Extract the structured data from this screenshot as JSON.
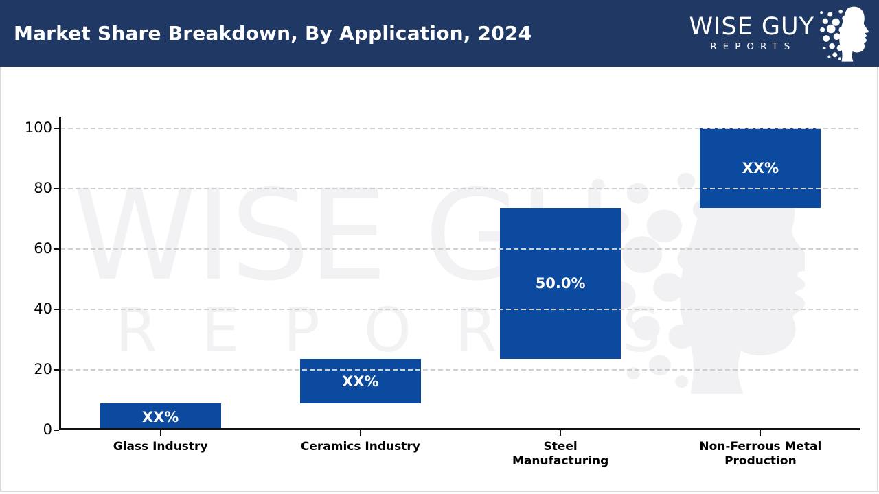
{
  "header": {
    "title": "Market Share Breakdown, By Application, 2024",
    "logo": {
      "line1": "WISE GUY",
      "line2": "REPORTS",
      "icon": "dotted-face-profile"
    }
  },
  "watermark": {
    "line1": "WISE GU",
    "line2": "R E P O R T S"
  },
  "colors": {
    "header_bg": "#1F3864",
    "bar": "#0B4A9F",
    "grid": "#CFCFCF",
    "axis": "#111111",
    "watermark": "#F2F2F4"
  },
  "chart_data": {
    "type": "bar",
    "subtype": "waterfall",
    "title": "Market Share Breakdown, By Application, 2024",
    "xlabel": "",
    "ylabel": "",
    "ylim": [
      0,
      104
    ],
    "yticks": [
      0,
      20,
      40,
      60,
      80,
      100
    ],
    "grid": "horizontal dashed, drawn over bars",
    "legend": "none",
    "categories": [
      "Glass Industry",
      "Ceramics Industry",
      "Steel Manufacturing",
      "Non-Ferrous Metal Production"
    ],
    "bars": [
      {
        "category": "Glass Industry",
        "category_display": "Glass Industry",
        "start": 0,
        "end": 8.8,
        "value_label": "XX%"
      },
      {
        "category": "Ceramics Industry",
        "category_display": "Ceramics Industry",
        "start": 8.8,
        "end": 23.6,
        "value_label": "XX%"
      },
      {
        "category": "Steel Manufacturing",
        "category_display": "Steel\nManufacturing",
        "start": 23.6,
        "end": 73.6,
        "value_label": "50.0%"
      },
      {
        "category": "Non-Ferrous Metal Production",
        "category_display": "Non-Ferrous Metal\nProduction",
        "start": 73.6,
        "end": 100,
        "value_label": "XX%"
      }
    ]
  }
}
